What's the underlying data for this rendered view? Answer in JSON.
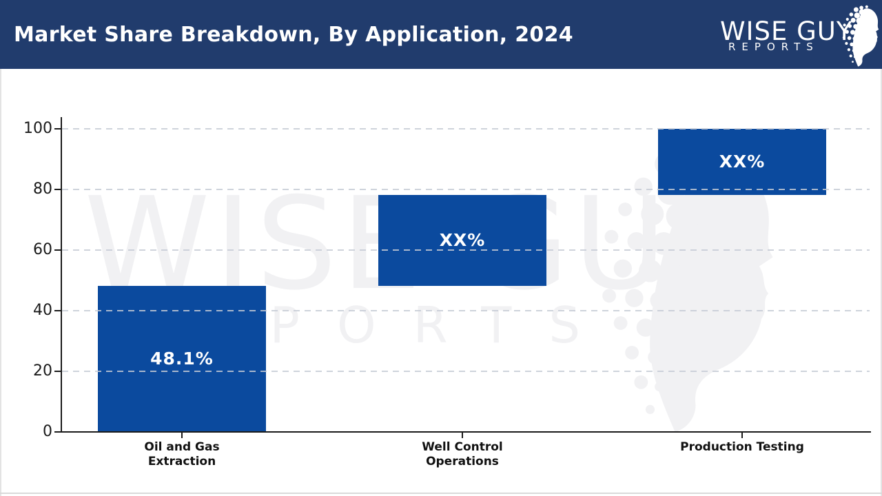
{
  "header": {
    "title": "Market Share Breakdown, By Application, 2024",
    "bg_color": "#213c6d",
    "logo": {
      "line1": "WISE GUY",
      "line2": "REPORTS"
    }
  },
  "watermark": {
    "line1": "WISE GUY",
    "line2": "REPORTS"
  },
  "chart_data": {
    "type": "bar",
    "subtype": "waterfall-stacked-market-share",
    "title": "Market Share Breakdown, By Application, 2024",
    "categories": [
      [
        "Oil and Gas",
        "Extraction"
      ],
      [
        "Well Control",
        "Operations"
      ],
      [
        "Production Testing"
      ]
    ],
    "segments": [
      {
        "category": "Oil and Gas Extraction",
        "start": 0,
        "end": 48.1,
        "label": "48.1%"
      },
      {
        "category": "Well Control Operations",
        "start": 48.1,
        "end": 78.2,
        "label": "XX%"
      },
      {
        "category": "Production Testing",
        "start": 78.2,
        "end": 100,
        "label": "XX%"
      }
    ],
    "yticks": [
      0,
      20,
      40,
      60,
      80,
      100
    ],
    "ylim": [
      0,
      104
    ],
    "xlabel": "",
    "ylabel": "",
    "grid": true,
    "grid_style": "dashed",
    "grid_over_bars": true,
    "legend": false,
    "bar_color": "#0b4a9e",
    "bar_label_color": "#ffffff",
    "axis_color": "#1a1a1a",
    "grid_color": "#d2d6dd"
  }
}
